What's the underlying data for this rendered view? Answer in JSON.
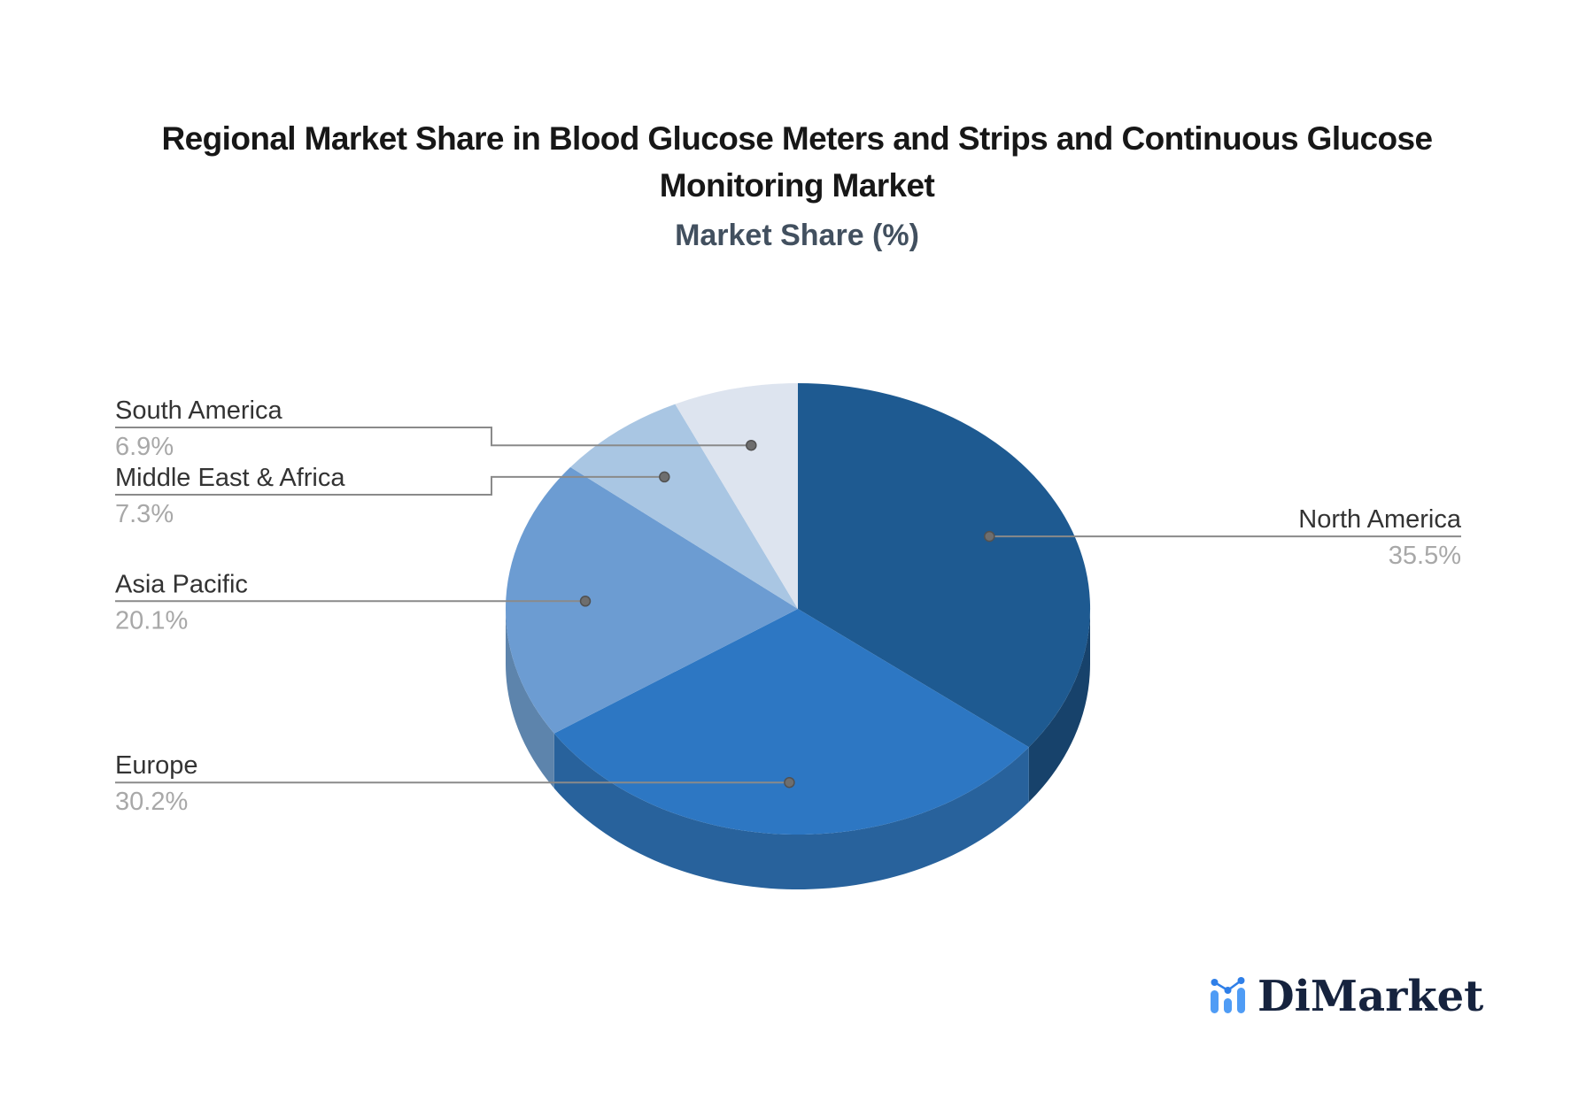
{
  "header": {
    "title_line1": "Regional Market Share in Blood Glucose Meters and Strips and Continuous Glucose",
    "title_line2": "Monitoring Market",
    "subtitle": "Market Share (%)"
  },
  "chart_data": {
    "type": "pie",
    "effect": "3d",
    "title": "Regional Market Share in Blood Glucose Meters and Strips and Continuous Glucose Monitoring Market",
    "subtitle": "Market Share (%)",
    "unit": "%",
    "start_angle_deg": 0,
    "direction": "clockwise",
    "labels_position": "outside-leader-lines",
    "legend": "none",
    "slices": [
      {
        "label": "North America",
        "value": 35.5,
        "pct_label": "35.5%",
        "color": "#1E5A91",
        "side_color": "#17426B"
      },
      {
        "label": "Europe",
        "value": 30.2,
        "pct_label": "30.2%",
        "color": "#2D77C3",
        "side_color": "#28629C"
      },
      {
        "label": "Asia Pacific",
        "value": 20.1,
        "pct_label": "20.1%",
        "color": "#6C9CD2",
        "side_color": "#5D84AC"
      },
      {
        "label": "Middle East & Africa",
        "value": 7.3,
        "pct_label": "7.3%",
        "color": "#A9C6E3"
      },
      {
        "label": "South America",
        "value": 6.9,
        "pct_label": "6.9%",
        "color": "#DDE4EF"
      }
    ]
  },
  "branding": {
    "logo_text": "DiMarket",
    "logo_icon": "bar-chart-sparkline-icon",
    "logo_text_color": "#16233E",
    "logo_bar_color": "#4F9CF5",
    "logo_accent_color": "#2F7FE8"
  },
  "colors": {
    "background": "#FFFFFF",
    "title": "#171717",
    "subtitle": "#42505F",
    "label_text": "#333333",
    "percent_text": "#A8A8A8",
    "leader_line": "#8A8A8A",
    "leader_dot": "#6E6E6E",
    "leader_dot_ring": "#515151"
  }
}
